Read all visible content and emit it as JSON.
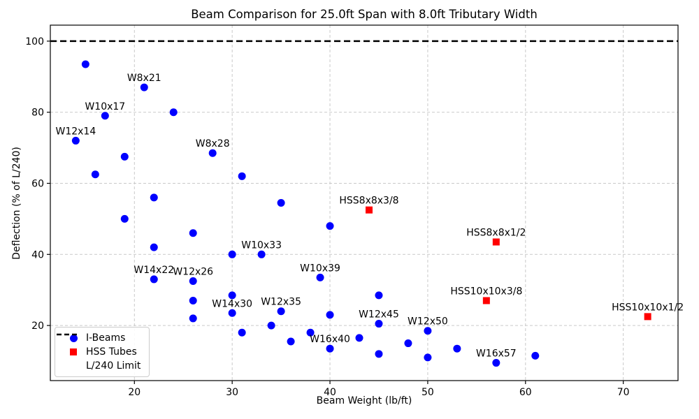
{
  "chart_data": {
    "type": "scatter",
    "title": "Beam Comparison for 25.0ft Span with 8.0ft Tributary Width",
    "xlabel": "Beam Weight (lb/ft)",
    "ylabel": "Deflection (% of L/240)",
    "xlim": [
      11.4,
      75.6
    ],
    "ylim": [
      4.5,
      104.5
    ],
    "xticks": [
      20,
      30,
      40,
      50,
      60,
      70
    ],
    "yticks": [
      20,
      40,
      60,
      80,
      100
    ],
    "grid": true,
    "legend_position": "lower-left",
    "colors": {
      "ibeam": "#0000ff",
      "hss": "#ff0000",
      "limit": "#000000",
      "grid": "#c9c9c9",
      "spine": "#000000"
    },
    "limit_line": {
      "label": "L/240 Limit",
      "y": 100
    },
    "series": [
      {
        "name": "I-Beams",
        "marker": "circle",
        "color": "#0000ff",
        "points": [
          {
            "x": 15,
            "y": 93.5
          },
          {
            "x": 21,
            "y": 87,
            "label": "W8x21"
          },
          {
            "x": 24,
            "y": 80
          },
          {
            "x": 17,
            "y": 79,
            "label": "W10x17"
          },
          {
            "x": 14,
            "y": 72,
            "label": "W12x14"
          },
          {
            "x": 28,
            "y": 68.5,
            "label": "W8x28"
          },
          {
            "x": 19,
            "y": 67.5
          },
          {
            "x": 16,
            "y": 62.5
          },
          {
            "x": 31,
            "y": 62
          },
          {
            "x": 22,
            "y": 56
          },
          {
            "x": 35,
            "y": 54.5
          },
          {
            "x": 19,
            "y": 50
          },
          {
            "x": 40,
            "y": 48
          },
          {
            "x": 26,
            "y": 46
          },
          {
            "x": 22,
            "y": 42
          },
          {
            "x": 30,
            "y": 40
          },
          {
            "x": 33,
            "y": 40,
            "label": "W10x33"
          },
          {
            "x": 39,
            "y": 33.5,
            "label": "W10x39"
          },
          {
            "x": 22,
            "y": 33,
            "label": "W14x22"
          },
          {
            "x": 26,
            "y": 32.5,
            "label": "W12x26"
          },
          {
            "x": 45,
            "y": 28.5
          },
          {
            "x": 30,
            "y": 28.5
          },
          {
            "x": 26,
            "y": 27
          },
          {
            "x": 35,
            "y": 24,
            "label": "W12x35"
          },
          {
            "x": 30,
            "y": 23.5,
            "label": "W14x30"
          },
          {
            "x": 40,
            "y": 23
          },
          {
            "x": 26,
            "y": 22
          },
          {
            "x": 45,
            "y": 20.5,
            "label": "W12x45"
          },
          {
            "x": 34,
            "y": 20
          },
          {
            "x": 50,
            "y": 18.5,
            "label": "W12x50"
          },
          {
            "x": 38,
            "y": 18
          },
          {
            "x": 31,
            "y": 18
          },
          {
            "x": 43,
            "y": 16.5
          },
          {
            "x": 36,
            "y": 15.5
          },
          {
            "x": 48,
            "y": 15
          },
          {
            "x": 40,
            "y": 13.5,
            "label": "W16x40"
          },
          {
            "x": 53,
            "y": 13.5
          },
          {
            "x": 45,
            "y": 12
          },
          {
            "x": 61,
            "y": 11.5
          },
          {
            "x": 50,
            "y": 11
          },
          {
            "x": 57,
            "y": 9.5,
            "label": "W16x57"
          }
        ]
      },
      {
        "name": "HSS Tubes",
        "marker": "square",
        "color": "#ff0000",
        "points": [
          {
            "x": 44,
            "y": 52.5,
            "label": "HSS8x8x3/8"
          },
          {
            "x": 57,
            "y": 43.5,
            "label": "HSS8x8x1/2"
          },
          {
            "x": 56,
            "y": 27,
            "label": "HSS10x10x3/8"
          },
          {
            "x": 72.5,
            "y": 22.5,
            "label": "HSS10x10x1/2"
          }
        ]
      }
    ]
  }
}
